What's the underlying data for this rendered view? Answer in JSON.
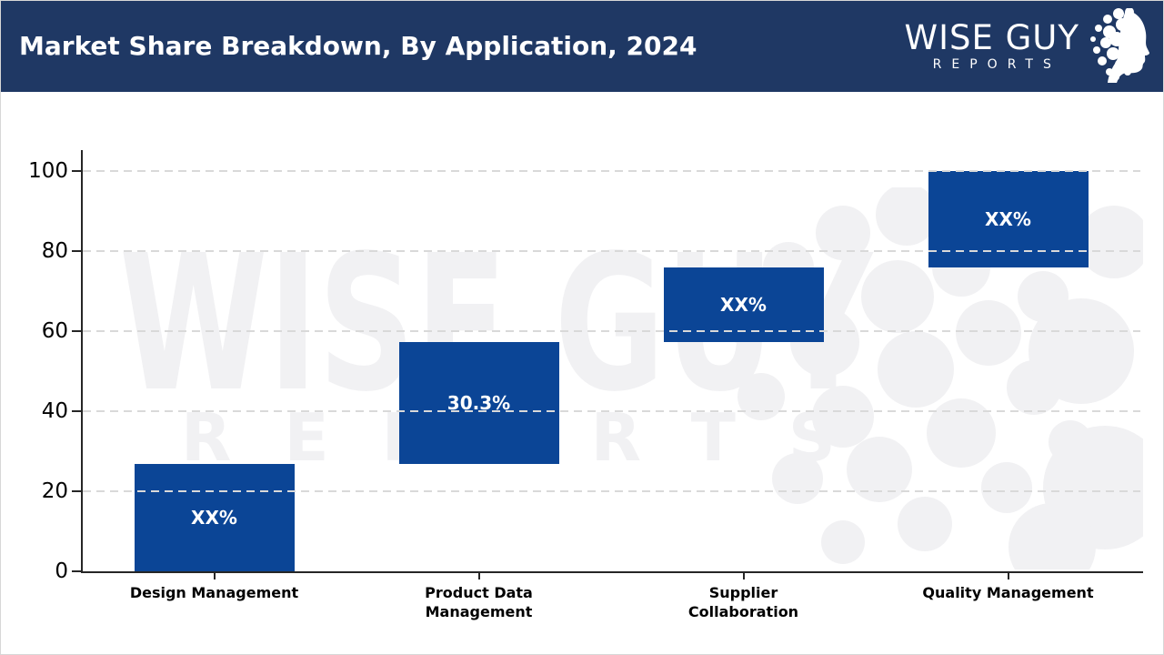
{
  "header": {
    "title": "Market Share Breakdown, By Application, 2024",
    "logo": {
      "brand": "WISE GUY",
      "sub": "REPORTS"
    }
  },
  "watermark": {
    "brand": "WISE GUY",
    "sub": "REPORTS"
  },
  "chart_data": {
    "type": "bar",
    "subtype": "floating_waterfall",
    "title": "Market Share Breakdown, By Application, 2024",
    "categories": [
      "Design Management",
      "Product Data Management",
      "Supplier Collaboration",
      "Quality Management"
    ],
    "category_label_lines": [
      [
        "Design Management"
      ],
      [
        "Product Data",
        "Management"
      ],
      [
        "Supplier",
        "Collaboration"
      ],
      [
        "Quality Management"
      ]
    ],
    "segments": [
      {
        "category": "Design Management",
        "start": 0,
        "end": 26.9,
        "label": "XX%"
      },
      {
        "category": "Product Data Management",
        "start": 26.9,
        "end": 57.2,
        "label": "30.3%"
      },
      {
        "category": "Supplier Collaboration",
        "start": 57.2,
        "end": 75.9,
        "label": "XX%"
      },
      {
        "category": "Quality Management",
        "start": 75.9,
        "end": 100,
        "label": "XX%"
      }
    ],
    "ylim": [
      0,
      100
    ],
    "yticks": [
      0,
      20,
      40,
      60,
      80,
      100
    ],
    "grid": "horizontal dashed, drawn above bars",
    "legend": "none"
  },
  "colors": {
    "header_bg": "#1f3864",
    "bar_fill": "#0b4596",
    "bar_label": "#ffffff",
    "grid_line": "#d9d9d9",
    "axis_line": "#262626",
    "tick_text": "#000000",
    "watermark": "#f1f1f3",
    "page_border": "#d7d7d7"
  }
}
